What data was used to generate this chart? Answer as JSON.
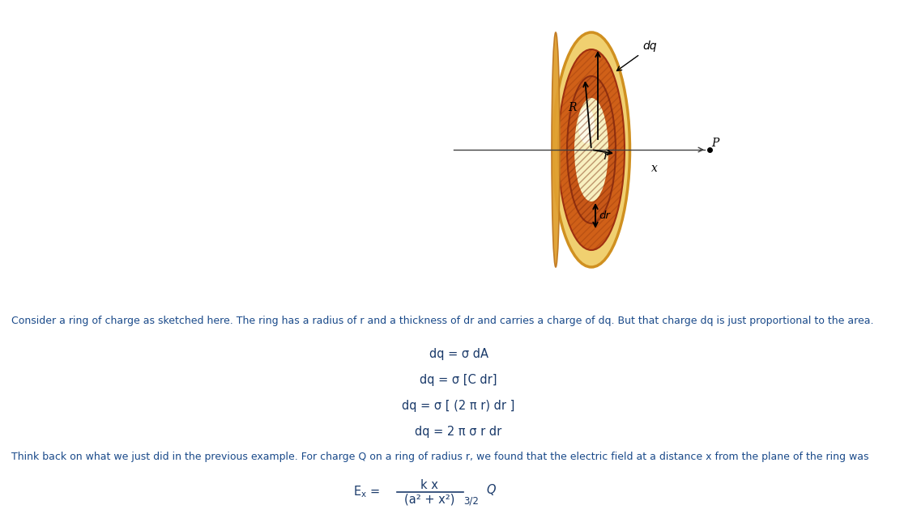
{
  "bg_color": "#ffffff",
  "text_color": "#1a4a8a",
  "eq_color": "#1a3a6a",
  "paragraph1": "Consider a ring of charge as sketched here. The ring has a radius of r and a thickness of dr and carries a charge of dq. But that charge dq is just proportional to the area.",
  "paragraph2": "Think back on what we just did in the previous example. For charge Q on a ring of radius r, we found that the electric field at a distance x from the plane of the ring was",
  "eq1": "dq = σ dA",
  "eq2": "dq = σ [C dr]",
  "eq3": "dq = σ [ (2 π r) dr ]",
  "eq4": "dq = 2 π σ r dr",
  "fig_width": 11.32,
  "fig_height": 6.45,
  "font_size_para": 9.0,
  "font_size_eq": 10.5
}
